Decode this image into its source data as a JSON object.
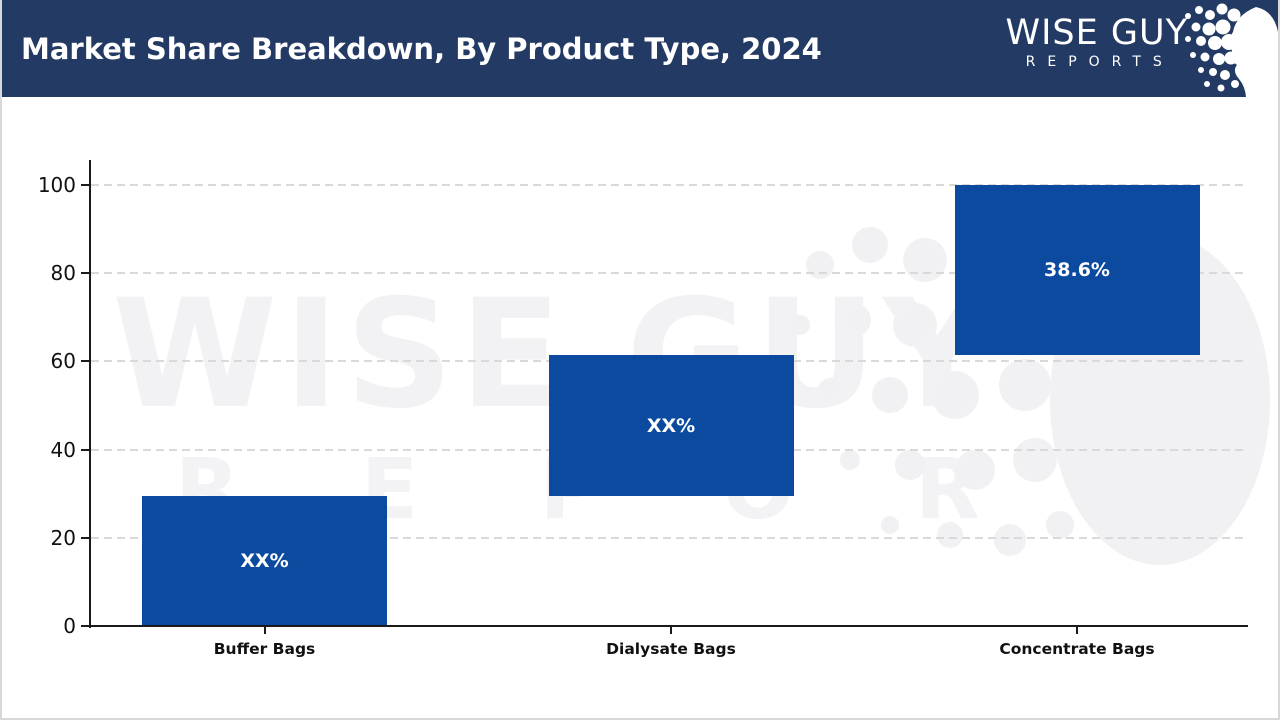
{
  "header": {
    "title": "Market Share Breakdown, By Product Type, 2024",
    "bg_color": "#233a64",
    "logo": {
      "line1": "WISE GUY",
      "line2": "REPORTS",
      "icon": "dotted-head-profile"
    }
  },
  "watermark": {
    "line1": "WISE GUY",
    "line2": "R E P O R T S"
  },
  "chart_data": {
    "type": "bar",
    "subtype": "waterfall",
    "title": "Market Share Breakdown, By Product Type, 2024",
    "categories": [
      "Buffer Bags",
      "Dialysate Bags",
      "Concentrate Bags"
    ],
    "segments": [
      {
        "category": "Buffer Bags",
        "start": 0,
        "end": 29.4,
        "label": "XX%"
      },
      {
        "category": "Dialysate Bags",
        "start": 29.4,
        "end": 61.4,
        "label": "XX%"
      },
      {
        "category": "Concentrate Bags",
        "start": 61.4,
        "end": 100,
        "label": "38.6%"
      }
    ],
    "yticks": [
      0,
      20,
      40,
      60,
      80,
      100
    ],
    "ylim": [
      0,
      105
    ],
    "xlabel": "",
    "ylabel": "",
    "grid": "horizontal-dashed",
    "legend": "none",
    "bar_color": "#0b4a9e",
    "bar_label_color": "#ffffff",
    "axis_color": "#1a1a1a",
    "gridline_color": "#d9d9d9"
  }
}
